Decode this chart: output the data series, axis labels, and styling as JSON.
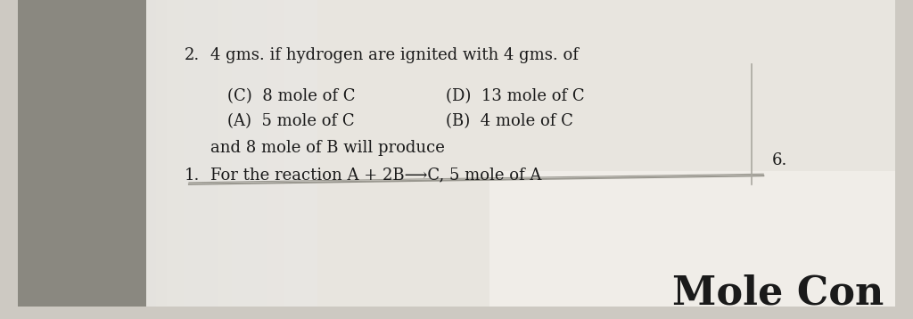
{
  "title": "Mole Con",
  "title_fontsize": 32,
  "q1_number": "1.",
  "q1_line1": "For the reaction A + 2B⟶C, 5 mole of A",
  "q1_line2": "and 8 mole of B will produce",
  "q1_optA": "(A)  5 mole of C",
  "q1_optB": "(B)  4 mole of C",
  "q1_optC": "(C)  8 mole of C",
  "q1_optD": "(D)  13 mole of C",
  "q2_number": "2.",
  "q2_line1": "4 gms. if hydrogen are ignited with 4 gms. of",
  "side_number": "6.",
  "bg_main": "#cdc9c2",
  "bg_left_dark": "#8a8880",
  "bg_white_area": "#e8e5df",
  "bg_content": "#d4d0c9",
  "text_color": "#1a1a1a",
  "line_color": "#9a9890",
  "body_fontsize": 13,
  "number_fontsize": 13
}
